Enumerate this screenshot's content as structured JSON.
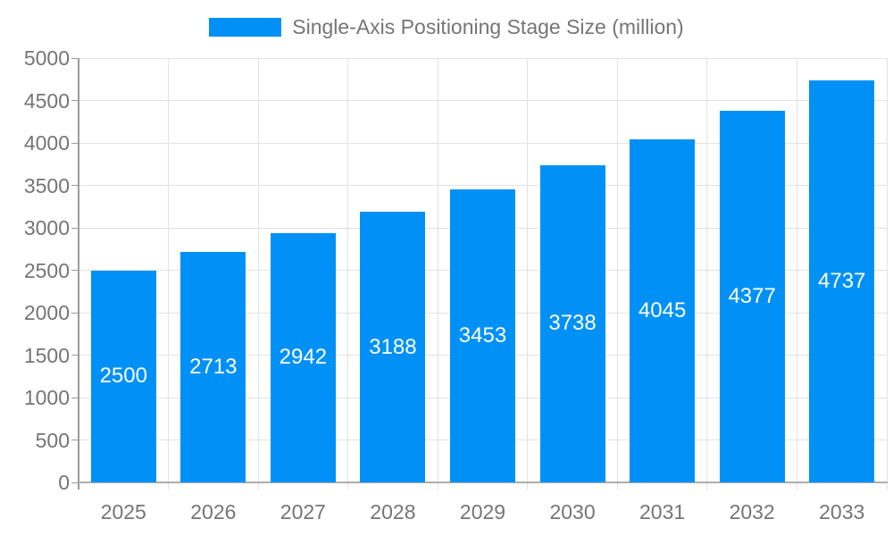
{
  "chart_data": {
    "type": "bar",
    "title": "Single-Axis Positioning Stage Size (million)",
    "categories": [
      "2025",
      "2026",
      "2027",
      "2028",
      "2029",
      "2030",
      "2031",
      "2032",
      "2033"
    ],
    "series": [
      {
        "name": "Single-Axis Positioning Stage Size (million)",
        "color": "#0191f6",
        "values": [
          2500,
          2713,
          2942,
          3188,
          3453,
          3738,
          4045,
          4377,
          4737
        ]
      }
    ],
    "legend": {
      "position": "top",
      "entries": [
        {
          "label": "Single-Axis Positioning Stage Size (million)",
          "color": "#0191f6"
        }
      ]
    },
    "xlabel": "",
    "ylabel": "",
    "ylim": [
      0,
      5000
    ],
    "yticks": [
      "0",
      "500",
      "1000",
      "1500",
      "2000",
      "2500",
      "3000",
      "3500",
      "4000",
      "4500",
      "5000"
    ],
    "grid": true,
    "bar_label_color": "#ffffff"
  },
  "colors": {
    "bar": "#0191f6",
    "axis_line": "#9b9b9b",
    "grid_line": "#e2e2e2",
    "tick_text": "#757575",
    "legend_text": "#757575",
    "bar_label": "#ffffff",
    "background": "#ffffff"
  }
}
